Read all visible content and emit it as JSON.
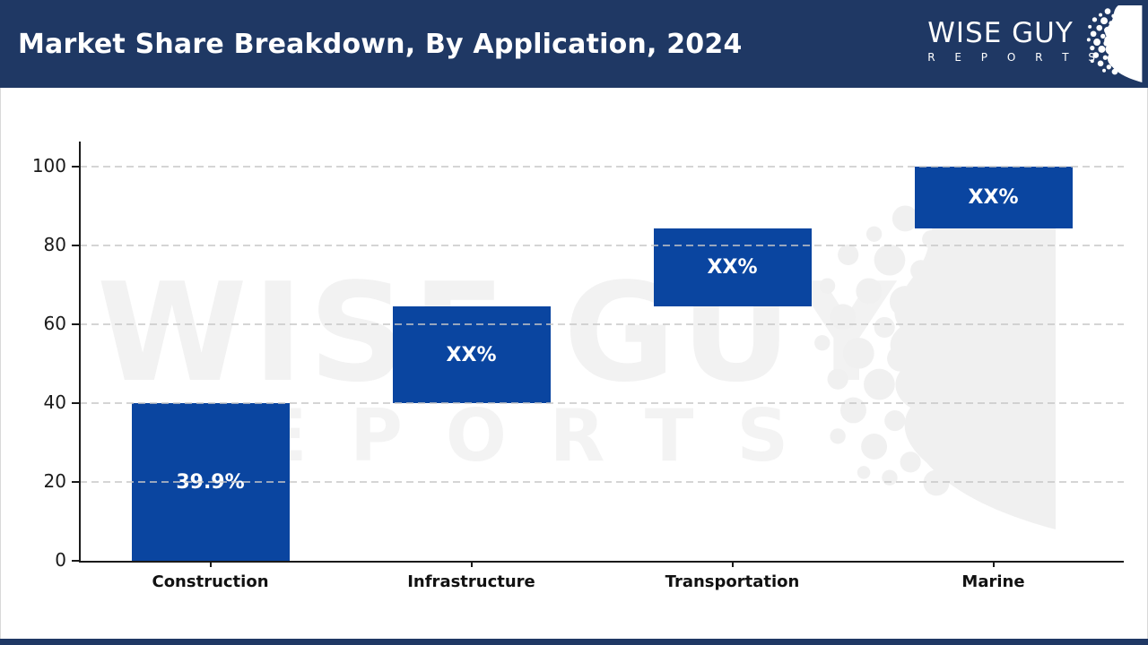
{
  "header": {
    "title": "Market Share Breakdown, By Application, 2024",
    "logo": {
      "line1": "WISE GUY",
      "line2": "R E P O R T S"
    }
  },
  "watermark": {
    "line1": "WISE GUY",
    "line2": "REPORTS"
  },
  "colors": {
    "header_bg": "#1f3864",
    "bar_blue": "#0a45a0",
    "axis": "#1a1a1a",
    "grid": "#c7c7c7",
    "watermark_gray": "#f2f2f2",
    "bar_label_white": "#ffffff"
  },
  "chart_data": {
    "type": "bar",
    "subtype": "waterfall-floating-bars",
    "title": "Market Share Breakdown, By Application, 2024",
    "categories": [
      "Construction",
      "Infrastructure",
      "Transportation",
      "Marine"
    ],
    "segments": [
      [
        0,
        39.9
      ],
      [
        39.9,
        64.6
      ],
      [
        64.6,
        84.4
      ],
      [
        84.4,
        100
      ]
    ],
    "increment_values": [
      39.9,
      24.7,
      19.8,
      15.6
    ],
    "bar_labels": [
      "39.9%",
      "XX%",
      "XX%",
      "XX%"
    ],
    "bar_color": "#0a45a0",
    "label_color": "#ffffff",
    "xlabel": "",
    "ylabel": "",
    "ylim": [
      0,
      100
    ],
    "yticks": [
      0,
      20,
      40,
      60,
      80,
      100
    ],
    "grid": "horizontal dashed, drawn over bars",
    "legend": "none"
  }
}
